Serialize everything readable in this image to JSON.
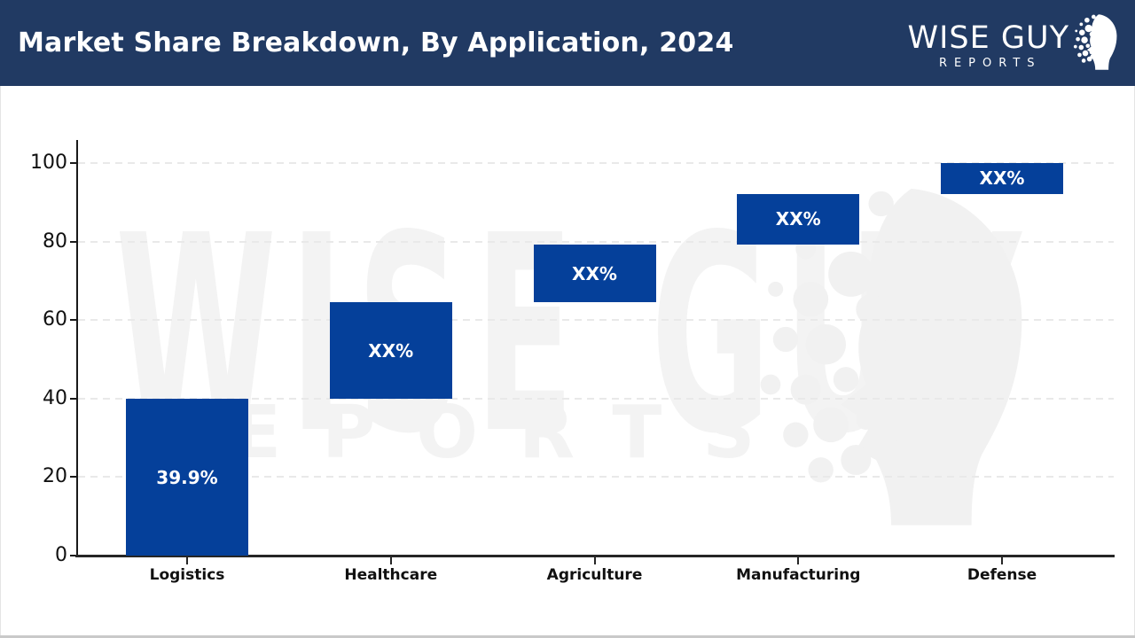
{
  "header": {
    "title": "Market Share Breakdown, By Application, 2024",
    "background_color": "#213a63",
    "logo": {
      "line1": "WISE GUY",
      "line2": "REPORTS",
      "head_icon": "dotted-head-profile"
    }
  },
  "watermark": {
    "line1": "WISE GUY",
    "line2": "REPORTS",
    "head_icon": "dotted-head-profile",
    "color": "#f3f3f3"
  },
  "chart_data": {
    "type": "bar",
    "subtype": "waterfall",
    "title": "Market Share Breakdown, By Application, 2024",
    "categories": [
      "Logistics",
      "Healthcare",
      "Agriculture",
      "Manufacturing",
      "Defense"
    ],
    "segments": [
      {
        "category": "Logistics",
        "start": 0,
        "end": 39.9,
        "label": "39.9%"
      },
      {
        "category": "Healthcare",
        "start": 39.9,
        "end": 64.6,
        "label": "XX%"
      },
      {
        "category": "Agriculture",
        "start": 64.6,
        "end": 79.3,
        "label": "XX%"
      },
      {
        "category": "Manufacturing",
        "start": 79.3,
        "end": 92.3,
        "label": "XX%"
      },
      {
        "category": "Defense",
        "start": 92.3,
        "end": 100,
        "label": "XX%"
      }
    ],
    "xlabel": "",
    "ylabel": "",
    "ylim": [
      0,
      104
    ],
    "yticks": [
      0,
      20,
      40,
      60,
      80,
      100
    ],
    "grid": "horizontal-dashed",
    "legend": "none",
    "bar_color": "#05409a",
    "bar_label_color": "#ffffff",
    "axis_text_color": "#111111",
    "gridline_color": "#e9e9e9"
  }
}
